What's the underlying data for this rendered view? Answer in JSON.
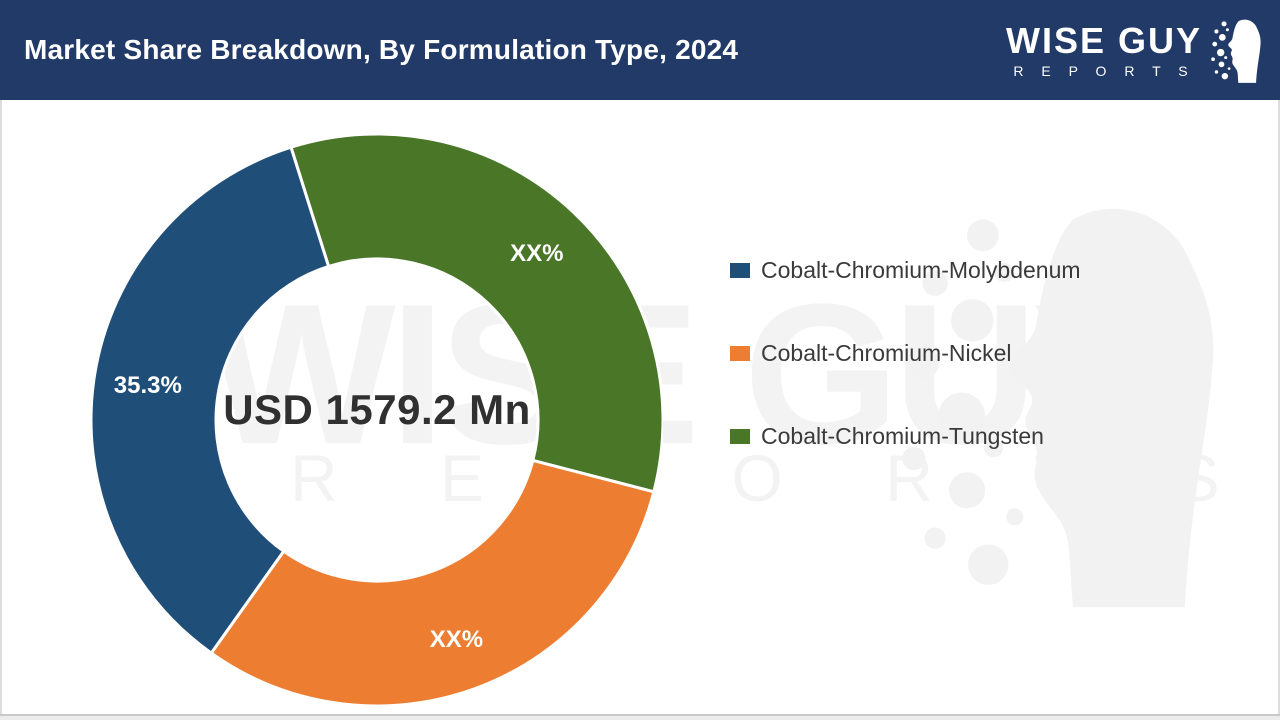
{
  "header": {
    "title": "Market Share Breakdown, By Formulation Type, 2024",
    "logo": {
      "line1": "WISE GUY",
      "line2": "R E P O R T S"
    }
  },
  "watermark": {
    "line1": "WISE GUY",
    "line2": "R E P O R T S"
  },
  "colors": {
    "header_navy": "#223a67",
    "blue": "#1f4e79",
    "orange": "#ed7d31",
    "green": "#4a7628",
    "center_text": "#303030",
    "legend_text": "#3a3a3a",
    "watermark_gray": "#f3f3f3"
  },
  "chart_data": {
    "type": "pie",
    "subtype": "donut",
    "title": "Market Share Breakdown, By Formulation Type, 2024",
    "center_label": "USD 1579.2 Mn",
    "start_angle_clockwise_from_top_deg": -17.5,
    "outer_radius_px": 286,
    "inner_radius_px": 161,
    "segments": [
      {
        "label": "Cobalt-Chromium-Tungsten",
        "display_pct": "XX%",
        "arc_pct": 33.9,
        "color": "#4a7628"
      },
      {
        "label": "Cobalt-Chromium-Nickel",
        "display_pct": "XX%",
        "arc_pct": 30.8,
        "color": "#ed7d31"
      },
      {
        "label": "Cobalt-Chromium-Molybdenum",
        "display_pct": "35.3%",
        "arc_pct": 35.3,
        "color": "#1f4e79"
      }
    ],
    "legend": [
      {
        "label": "Cobalt-Chromium-Molybdenum",
        "color": "#1f4e79"
      },
      {
        "label": "Cobalt-Chromium-Nickel",
        "color": "#ed7d31"
      },
      {
        "label": "Cobalt-Chromium-Tungsten",
        "color": "#4a7628"
      }
    ],
    "legend_position": "right"
  }
}
